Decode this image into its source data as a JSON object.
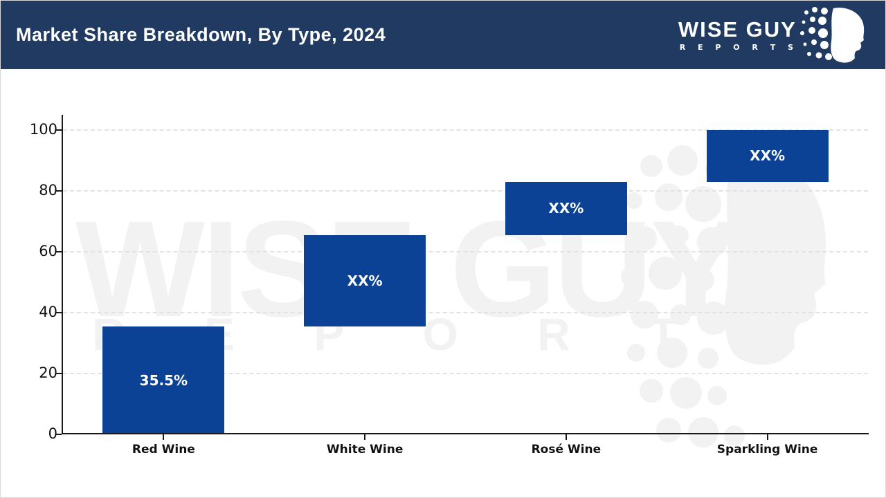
{
  "header": {
    "title": "Market Share Breakdown, By Type, 2024",
    "logo": {
      "line1": "WISE GUY",
      "line2": "R E P O R T S"
    }
  },
  "watermark": {
    "line1": "WISE GUY",
    "line2": "R E P O R T S"
  },
  "chart_data": {
    "type": "bar",
    "subtype": "waterfall",
    "title": "Market Share Breakdown, By Type, 2024",
    "categories": [
      "Red Wine",
      "White Wine",
      "Rosé Wine",
      "Sparkling Wine"
    ],
    "series": [
      {
        "name": "Red Wine",
        "start": 0,
        "end": 35.5,
        "label": "35.5%"
      },
      {
        "name": "White Wine",
        "start": 35.5,
        "end": 65.5,
        "label": "XX%"
      },
      {
        "name": "Rosé Wine",
        "start": 65.5,
        "end": 83,
        "label": "XX%"
      },
      {
        "name": "Sparkling Wine",
        "start": 83,
        "end": 100,
        "label": "XX%"
      }
    ],
    "xlabel": "",
    "ylabel": "",
    "ylim": [
      0,
      100
    ],
    "yticks": [
      0,
      20,
      40,
      60,
      80,
      100
    ],
    "grid": "horizontal-dashed",
    "legend": "none",
    "bar_color": "#0b4296",
    "bar_label_color": "#ffffff"
  },
  "colors": {
    "header_bg": "#203a61",
    "bar_fill": "#0b4296",
    "axis": "#1a1a1a",
    "gridline": "#e2e2e2",
    "watermark": "#f2f2f3",
    "page_bg": "#ffffff"
  }
}
